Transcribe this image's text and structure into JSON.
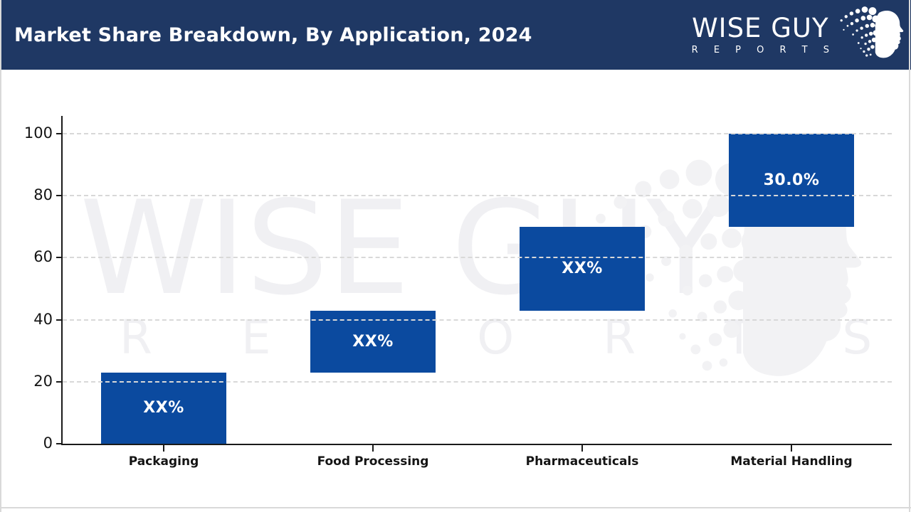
{
  "header": {
    "title": "Market Share Breakdown, By Application, 2024",
    "bg_color": "#1f3864",
    "logo": {
      "line1": "WISE GUY",
      "line2": "R E P O R T S"
    }
  },
  "watermark": {
    "line1": "WISE GUY",
    "line2": "R E P O R T S"
  },
  "chart_data": {
    "type": "bar",
    "subtype": "waterfall",
    "title": "Market Share Breakdown, By Application, 2024",
    "xlabel": "",
    "ylabel": "",
    "categories": [
      "Packaging",
      "Food Processing",
      "Pharmaceuticals",
      "Material Handling"
    ],
    "segments": [
      {
        "category": "Packaging",
        "start": 0,
        "end": 23,
        "value": 23,
        "label": "XX%"
      },
      {
        "category": "Food Processing",
        "start": 23,
        "end": 43,
        "value": 20,
        "label": "XX%"
      },
      {
        "category": "Pharmaceuticals",
        "start": 43,
        "end": 70,
        "value": 27,
        "label": "XX%"
      },
      {
        "category": "Material Handling",
        "start": 70,
        "end": 100,
        "value": 30,
        "label": "30.0%"
      }
    ],
    "yticks": [
      0,
      20,
      40,
      60,
      80,
      100
    ],
    "ylim": [
      0,
      106
    ],
    "grid": "horizontal dashed, drawn above bars",
    "legend": "none",
    "bar_color": "#0b4a9f",
    "bar_label_color": "#ffffff",
    "gridline_color": "#d8d8d8",
    "axis_color": "#1a1a1a"
  }
}
